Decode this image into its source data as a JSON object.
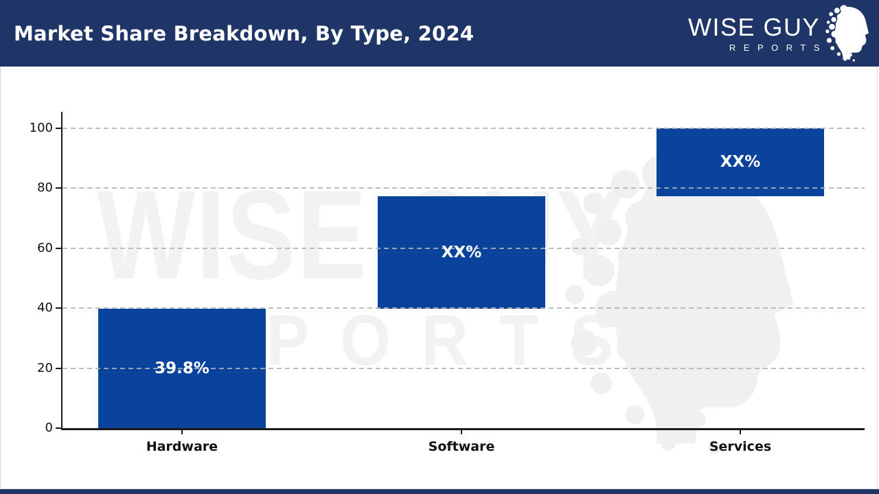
{
  "header": {
    "title": "Market Share Breakdown, By Type, 2024",
    "brand": {
      "name": "WISE GUY",
      "tagline": "REPORTS"
    }
  },
  "watermark": {
    "name": "WISE GUY",
    "tagline": "REPORTS"
  },
  "chart_data": {
    "type": "bar",
    "subtype": "waterfall",
    "title": "Market Share Breakdown, By Type, 2024",
    "categories": [
      "Hardware",
      "Software",
      "Services"
    ],
    "series": [
      {
        "name": "Market share (%)",
        "segments": [
          {
            "category": "Hardware",
            "start": 0,
            "end": 39.8,
            "label": "39.8%"
          },
          {
            "category": "Software",
            "start": 39.8,
            "end": 77.3,
            "label": "XX%"
          },
          {
            "category": "Services",
            "start": 77.3,
            "end": 100,
            "label": "XX%"
          }
        ]
      }
    ],
    "ylim": [
      0,
      100
    ],
    "yticks": [
      0,
      20,
      40,
      60,
      80,
      100
    ],
    "grid": true,
    "legend": false,
    "bar_color": "#09439c",
    "bar_label_color": "#ffffff",
    "axis_color": "#1a1a1a",
    "grid_color": "#b2b2b2"
  },
  "colors": {
    "header_bg": "#203567",
    "footer_bg": "#203567",
    "canvas_bg": "#ffffff",
    "watermark": "#f2f2f2"
  }
}
